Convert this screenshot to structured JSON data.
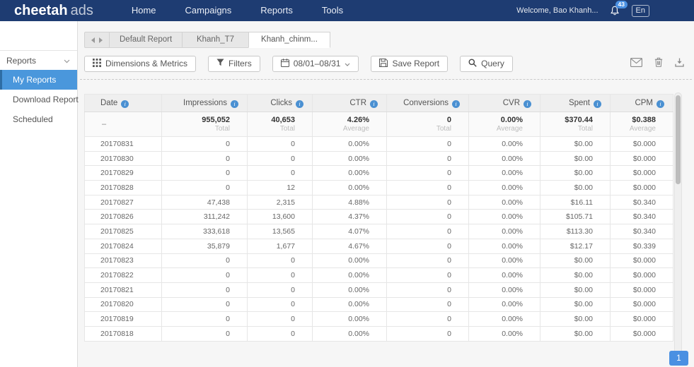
{
  "colors": {
    "topbar_bg": "#1e3c72",
    "accent_blue": "#4a90e2",
    "sidebar_active_bg": "#4a97dc",
    "info_icon_bg": "#4a90d2",
    "table_header_bg": "#efefef"
  },
  "icons": {
    "dimensions": "grid-3x3",
    "filters": "funnel",
    "date_range": "calendar",
    "save": "floppy-disk",
    "query": "magnifier",
    "mail": "envelope",
    "delete": "trash-can",
    "download": "down-arrow-tray",
    "notifications": "bell",
    "info": "i-in-circle",
    "tab_scroll": "left-right-triangles",
    "collapse": "chevron-down"
  },
  "topbar": {
    "logo_primary": "cheetah",
    "logo_secondary": "ads",
    "nav": [
      "Home",
      "Campaigns",
      "Reports",
      "Tools"
    ],
    "welcome": "Welcome,  Bao Khanh...",
    "notification_count": "43",
    "language": "En"
  },
  "sidebar": {
    "section_label": "Reports",
    "items": [
      {
        "label": "My Reports",
        "active": true
      },
      {
        "label": "Download Report",
        "active": false
      },
      {
        "label": "Scheduled",
        "active": false
      }
    ]
  },
  "tabs": [
    {
      "label": "Default Report",
      "active": false
    },
    {
      "label": "Khanh_T7",
      "active": false
    },
    {
      "label": "Khanh_chinm...",
      "active": true
    }
  ],
  "toolbar": {
    "dimensions_metrics_label": "Dimensions & Metrics",
    "filters_label": "Filters",
    "date_range_label": "08/01–08/31",
    "save_report_label": "Save Report",
    "query_label": "Query"
  },
  "table": {
    "columns": [
      "Date",
      "Impressions",
      "Clicks",
      "CTR",
      "Conversions",
      "CVR",
      "Spent",
      "CPM"
    ],
    "summary": {
      "date": "–",
      "values": [
        "955,052",
        "40,653",
        "4.26%",
        "0",
        "0.00%",
        "$370.44",
        "$0.388"
      ],
      "labels": [
        "Total",
        "Total",
        "Average",
        "Total",
        "Average",
        "Total",
        "Average"
      ]
    },
    "rows": [
      [
        "20170831",
        "0",
        "0",
        "0.00%",
        "0",
        "0.00%",
        "$0.00",
        "$0.000"
      ],
      [
        "20170830",
        "0",
        "0",
        "0.00%",
        "0",
        "0.00%",
        "$0.00",
        "$0.000"
      ],
      [
        "20170829",
        "0",
        "0",
        "0.00%",
        "0",
        "0.00%",
        "$0.00",
        "$0.000"
      ],
      [
        "20170828",
        "0",
        "12",
        "0.00%",
        "0",
        "0.00%",
        "$0.00",
        "$0.000"
      ],
      [
        "20170827",
        "47,438",
        "2,315",
        "4.88%",
        "0",
        "0.00%",
        "$16.11",
        "$0.340"
      ],
      [
        "20170826",
        "311,242",
        "13,600",
        "4.37%",
        "0",
        "0.00%",
        "$105.71",
        "$0.340"
      ],
      [
        "20170825",
        "333,618",
        "13,565",
        "4.07%",
        "0",
        "0.00%",
        "$113.30",
        "$0.340"
      ],
      [
        "20170824",
        "35,879",
        "1,677",
        "4.67%",
        "0",
        "0.00%",
        "$12.17",
        "$0.339"
      ],
      [
        "20170823",
        "0",
        "0",
        "0.00%",
        "0",
        "0.00%",
        "$0.00",
        "$0.000"
      ],
      [
        "20170822",
        "0",
        "0",
        "0.00%",
        "0",
        "0.00%",
        "$0.00",
        "$0.000"
      ],
      [
        "20170821",
        "0",
        "0",
        "0.00%",
        "0",
        "0.00%",
        "$0.00",
        "$0.000"
      ],
      [
        "20170820",
        "0",
        "0",
        "0.00%",
        "0",
        "0.00%",
        "$0.00",
        "$0.000"
      ],
      [
        "20170819",
        "0",
        "0",
        "0.00%",
        "0",
        "0.00%",
        "$0.00",
        "$0.000"
      ],
      [
        "20170818",
        "0",
        "0",
        "0.00%",
        "0",
        "0.00%",
        "$0.00",
        "$0.000"
      ]
    ]
  },
  "pagination": {
    "page": "1"
  }
}
